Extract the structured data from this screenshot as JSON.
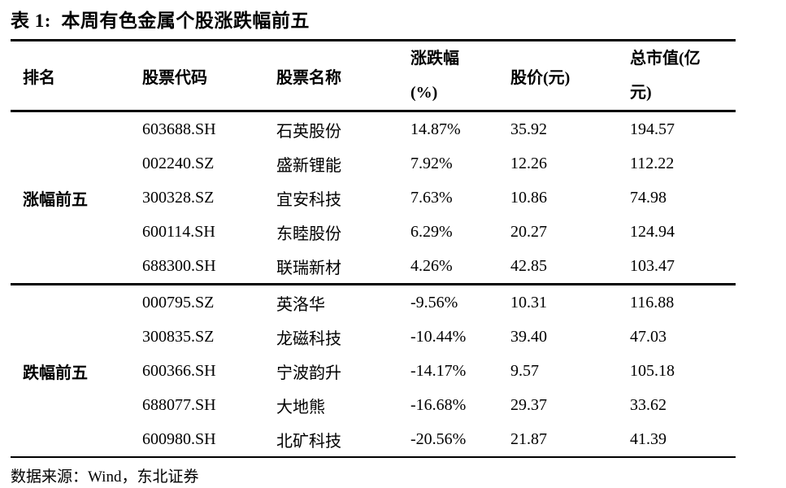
{
  "title": "表 1:  本周有色金属个股涨跌幅前五",
  "columns": {
    "rank": "排名",
    "code": "股票代码",
    "name": "股票名称",
    "change_line1": "涨跌幅",
    "change_line2": "(%)",
    "price": "股价(元)",
    "mcap_line1": "总市值(亿",
    "mcap_line2": "元)"
  },
  "groups": [
    {
      "label": "涨幅前五",
      "rows": [
        {
          "code": "603688.SH",
          "name": "石英股份",
          "change": "14.87%",
          "price": "35.92",
          "mcap": "194.57"
        },
        {
          "code": "002240.SZ",
          "name": "盛新锂能",
          "change": "7.92%",
          "price": "12.26",
          "mcap": "112.22"
        },
        {
          "code": "300328.SZ",
          "name": "宜安科技",
          "change": "7.63%",
          "price": "10.86",
          "mcap": "74.98"
        },
        {
          "code": "600114.SH",
          "name": "东睦股份",
          "change": "6.29%",
          "price": "20.27",
          "mcap": "124.94"
        },
        {
          "code": "688300.SH",
          "name": "联瑞新材",
          "change": "4.26%",
          "price": "42.85",
          "mcap": "103.47"
        }
      ]
    },
    {
      "label": "跌幅前五",
      "rows": [
        {
          "code": "000795.SZ",
          "name": "英洛华",
          "change": "-9.56%",
          "price": "10.31",
          "mcap": "116.88"
        },
        {
          "code": "300835.SZ",
          "name": "龙磁科技",
          "change": "-10.44%",
          "price": "39.40",
          "mcap": "47.03"
        },
        {
          "code": "600366.SH",
          "name": "宁波韵升",
          "change": "-14.17%",
          "price": "9.57",
          "mcap": "105.18"
        },
        {
          "code": "688077.SH",
          "name": "大地熊",
          "change": "-16.68%",
          "price": "29.37",
          "mcap": "33.62"
        },
        {
          "code": "600980.SH",
          "name": "北矿科技",
          "change": "-20.56%",
          "price": "21.87",
          "mcap": "41.39"
        }
      ]
    }
  ],
  "footer": "数据来源：Wind，东北证券"
}
